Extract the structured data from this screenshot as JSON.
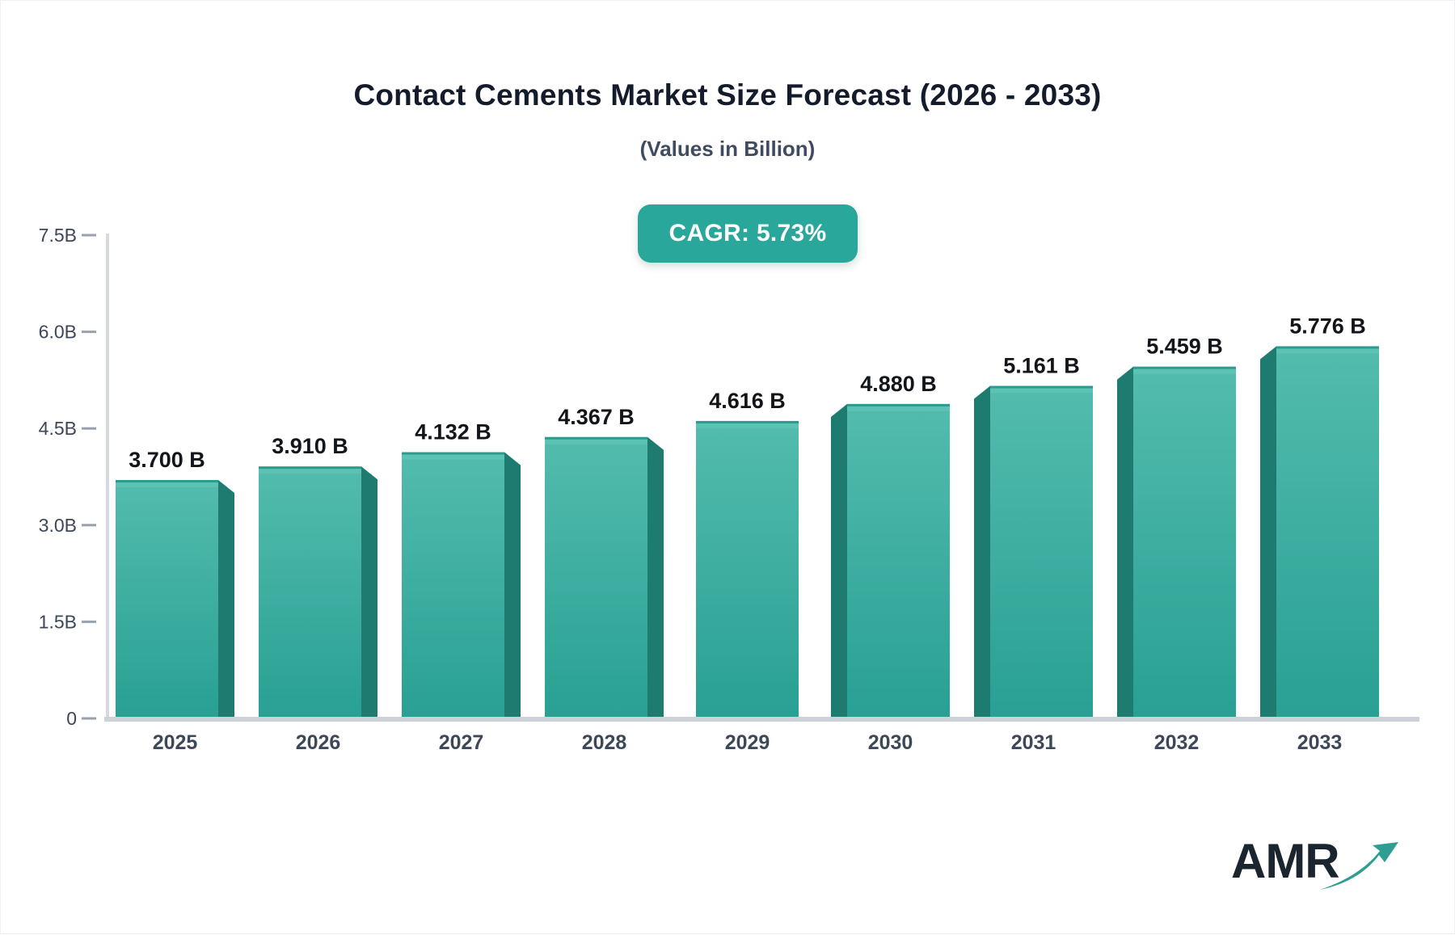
{
  "chart_data": {
    "type": "bar",
    "title": "Contact Cements Market Size Forecast (2026 - 2033)",
    "subtitle": "(Values in Billion)",
    "cagr": "CAGR: 5.73%",
    "categories": [
      "2025",
      "2026",
      "2027",
      "2028",
      "2029",
      "2030",
      "2031",
      "2032",
      "2033"
    ],
    "values": [
      3.7,
      3.91,
      4.132,
      4.367,
      4.616,
      4.88,
      5.161,
      5.459,
      5.776
    ],
    "data_labels": [
      "3.700 B",
      "3.910 B",
      "4.132 B",
      "4.367 B",
      "4.616 B",
      "4.880 B",
      "5.161 B",
      "5.459 B",
      "5.776 B"
    ],
    "xlabel": "",
    "ylabel": "",
    "ylim": [
      0,
      7.5
    ],
    "y_ticks": [
      {
        "label": "7.5B",
        "value": 7.5
      },
      {
        "label": "6.0B",
        "value": 6.0
      },
      {
        "label": "4.5B",
        "value": 4.5
      },
      {
        "label": "3.0B",
        "value": 3.0
      },
      {
        "label": "1.5B",
        "value": 1.5
      },
      {
        "label": "0",
        "value": 0
      }
    ],
    "grid": false,
    "legend": false,
    "bar_style": "3d-extruded"
  },
  "logo": {
    "text": "AMR",
    "icon": "growth-arrow-icon"
  },
  "colors": {
    "bar_top": "#53bcae",
    "bar_bottom": "#28a093",
    "bar_side": "#1e7b70",
    "bar_cap": "#5ec3b5",
    "bar_top_line": "#2e9a8d",
    "badge_bg": "#29a79a",
    "axis_line": "#d6dae0",
    "baseline": "#cdd2da",
    "tick": "#98a1ad",
    "axis_text": "#3c4758",
    "value_text": "#121519",
    "title_text": "#141b2b",
    "subtitle_text": "#3e4b60",
    "logo_text": "#1b2530",
    "logo_arrow": "#2f9e92"
  }
}
